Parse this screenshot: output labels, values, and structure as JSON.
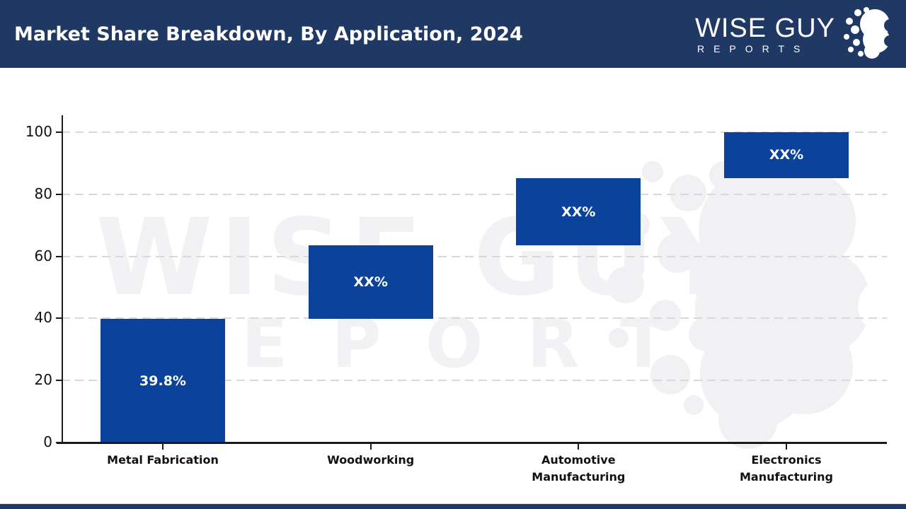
{
  "header": {
    "title": "Market Share Breakdown, By Application, 2024",
    "logo": {
      "word": "WISE GUY",
      "sub": "REPORTS"
    }
  },
  "watermark": {
    "line1": "WISE GUY",
    "line2": "REPORTS"
  },
  "colors": {
    "header_bg": "#203864",
    "footer_bg": "#203864",
    "bar": "#0b429c",
    "bar_label": "#ffffff",
    "gridline": "#d9d9d9",
    "axis": "#1a1a1a",
    "watermark": "#f2f2f4",
    "title_text": "#ffffff"
  },
  "chart_data": {
    "type": "bar",
    "variant": "waterfall",
    "title": "Market Share Breakdown, By Application, 2024",
    "categories": [
      "Metal Fabrication",
      "Woodworking",
      "Automotive Manufacturing",
      "Electronics Manufacturing"
    ],
    "segments": [
      {
        "category": "Metal Fabrication",
        "start": 0,
        "end": 39.8,
        "label": "39.8%"
      },
      {
        "category": "Woodworking",
        "start": 39.8,
        "end": 63.5,
        "label": "XX%"
      },
      {
        "category": "Automotive Manufacturing",
        "start": 63.5,
        "end": 85.2,
        "label": "XX%"
      },
      {
        "category": "Electronics Manufacturing",
        "start": 85.2,
        "end": 100,
        "label": "XX%"
      }
    ],
    "yticks": [
      "0",
      "20",
      "40",
      "60",
      "80",
      "100"
    ],
    "ytick_values": [
      0,
      20,
      40,
      60,
      80,
      100
    ],
    "ylim": [
      0,
      105
    ],
    "xlabel": "",
    "ylabel": "",
    "grid": "horizontal-dashed",
    "legend": "none"
  }
}
